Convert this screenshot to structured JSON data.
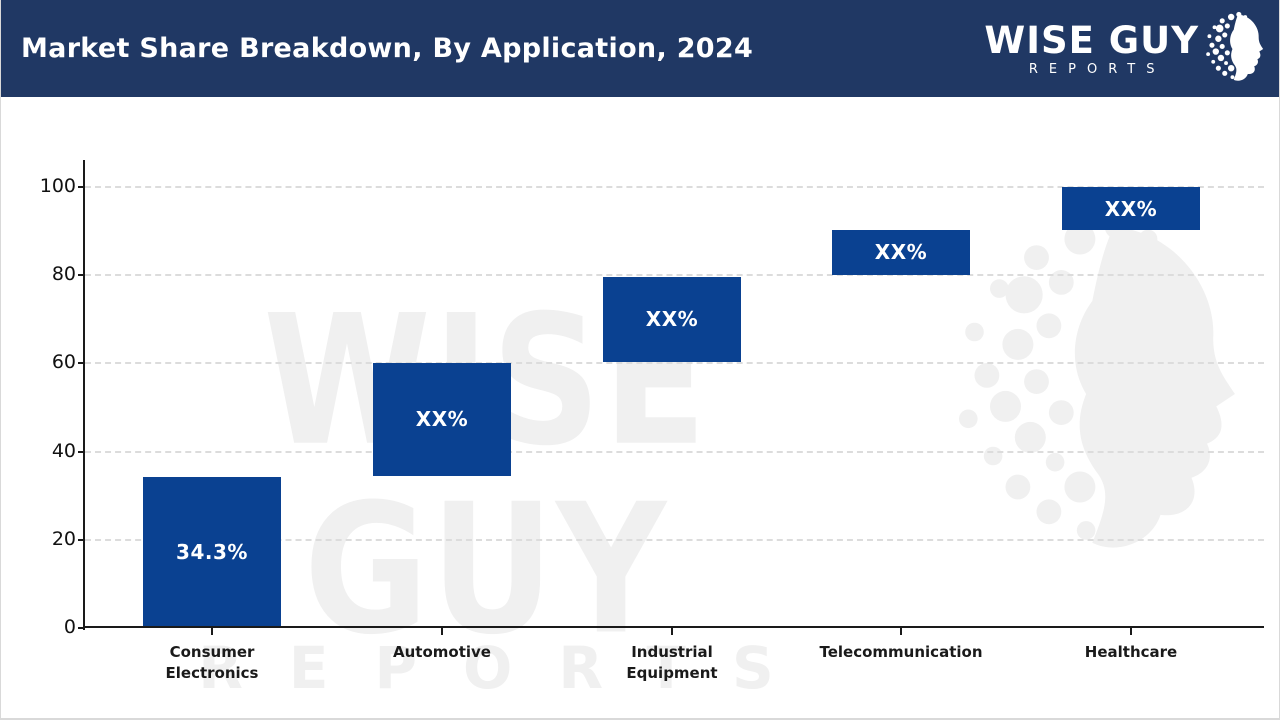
{
  "header": {
    "title": "Market Share Breakdown, By Application, 2024",
    "logo_line1": "WISE GUY",
    "logo_line2": "REPORTS"
  },
  "watermark": {
    "line1": "WISE GUY",
    "line2": "REPORTS"
  },
  "colors": {
    "header_bg": "#203864",
    "header_text": "#ffffff",
    "bar": "#0a4191",
    "bar_label": "#ffffff",
    "grid": "#dcdcdc",
    "axis": "#1a1a1a",
    "watermark": "#f0f0f0"
  },
  "chart_data": {
    "type": "bar",
    "subtype": "waterfall",
    "title": "Market Share Breakdown, By Application, 2024",
    "categories": [
      "Consumer Electronics",
      "Automotive",
      "Industrial Equipment",
      "Telecommunication",
      "Healthcare"
    ],
    "category_lines": [
      [
        "Consumer",
        "Electronics"
      ],
      [
        "Automotive"
      ],
      [
        "Industrial",
        "Equipment"
      ],
      [
        "Telecommunication"
      ],
      [
        "Healthcare"
      ]
    ],
    "segments": [
      {
        "category": "Consumer Electronics",
        "bottom": 0,
        "top": 34.3,
        "label": "34.3%"
      },
      {
        "category": "Automotive",
        "bottom": 34.4,
        "top": 60.2,
        "label": "XX%"
      },
      {
        "category": "Industrial Equipment",
        "bottom": 60.4,
        "top": 79.6,
        "label": "XX%"
      },
      {
        "category": "Telecommunication",
        "bottom": 80.1,
        "top": 90.2,
        "label": "XX%"
      },
      {
        "category": "Healthcare",
        "bottom": 90.2,
        "top": 100,
        "label": "XX%"
      }
    ],
    "values_increment": [
      34.3,
      25.8,
      19.2,
      10.1,
      9.8
    ],
    "yticks": [
      0,
      20,
      40,
      60,
      80,
      100
    ],
    "ylim": [
      0,
      107
    ],
    "xlabel": "",
    "ylabel": "",
    "grid": "horizontal-dashed",
    "legend": "none",
    "bar_color": "#0a4191"
  }
}
